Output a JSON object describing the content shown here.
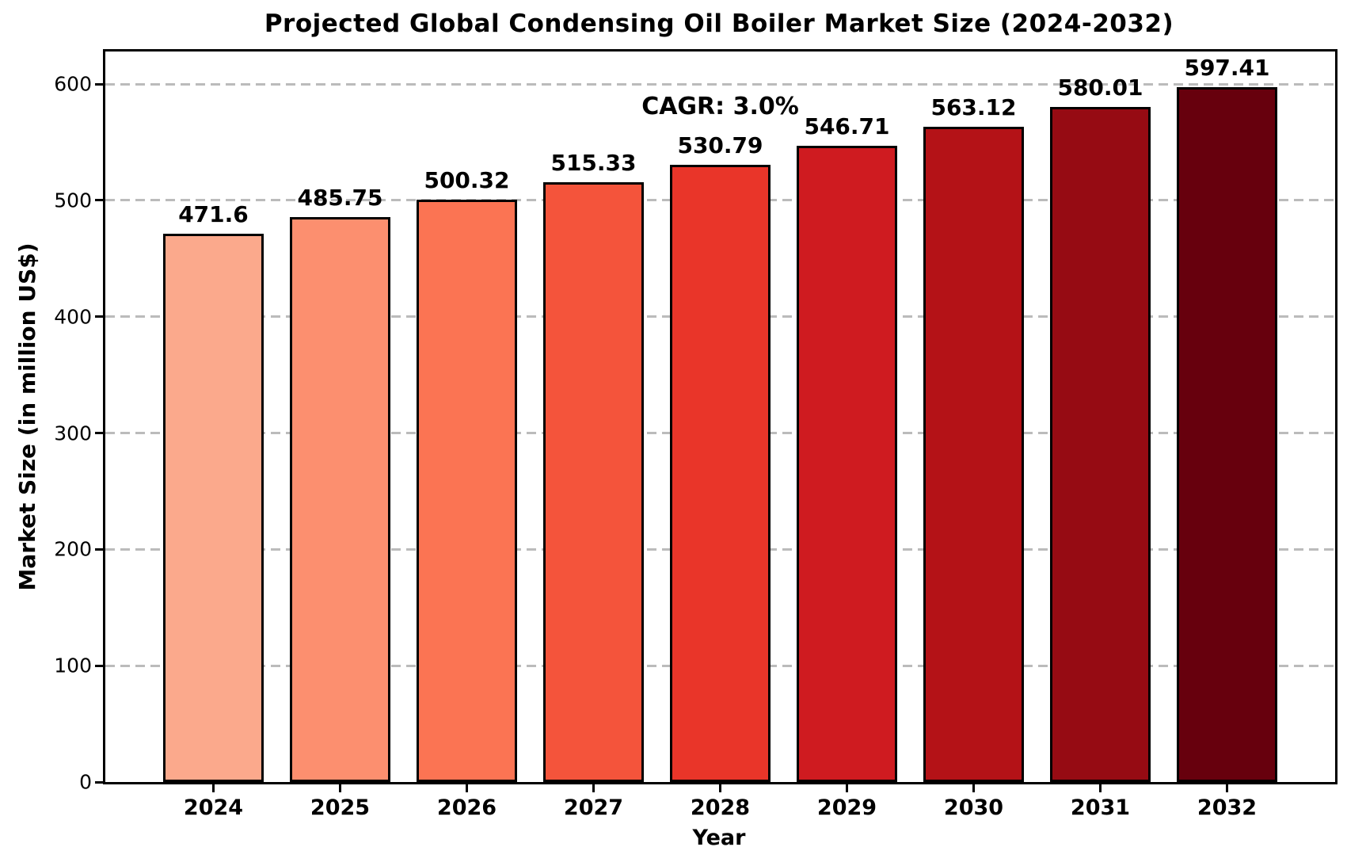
{
  "chart_data": {
    "type": "bar",
    "title": "Projected Global Condensing Oil Boiler Market Size (2024-2032)",
    "xlabel": "Year",
    "ylabel": "Market Size (in million US$)",
    "annotation": "CAGR: 3.0%",
    "categories": [
      "2024",
      "2025",
      "2026",
      "2027",
      "2028",
      "2029",
      "2030",
      "2031",
      "2032"
    ],
    "values": [
      471.6,
      485.75,
      500.32,
      515.33,
      530.79,
      546.71,
      563.12,
      580.01,
      597.41
    ],
    "value_labels": [
      "471.6",
      "485.75",
      "500.32",
      "515.33",
      "530.79",
      "546.71",
      "563.12",
      "580.01",
      "597.41"
    ],
    "bar_colors": [
      "#FBA98C",
      "#FC8F6F",
      "#FB7453",
      "#F4543B",
      "#E93529",
      "#CF1B20",
      "#B41217",
      "#960B13",
      "#67000D"
    ],
    "bar_edge_color": "#000000",
    "yticks": [
      0,
      100,
      200,
      300,
      400,
      500,
      600
    ],
    "ylim": [
      0,
      628
    ],
    "grid": true,
    "gridline_color": "#bbbbbb",
    "axis_color": "#000000",
    "background_color": "#ffffff",
    "legend": "none"
  }
}
